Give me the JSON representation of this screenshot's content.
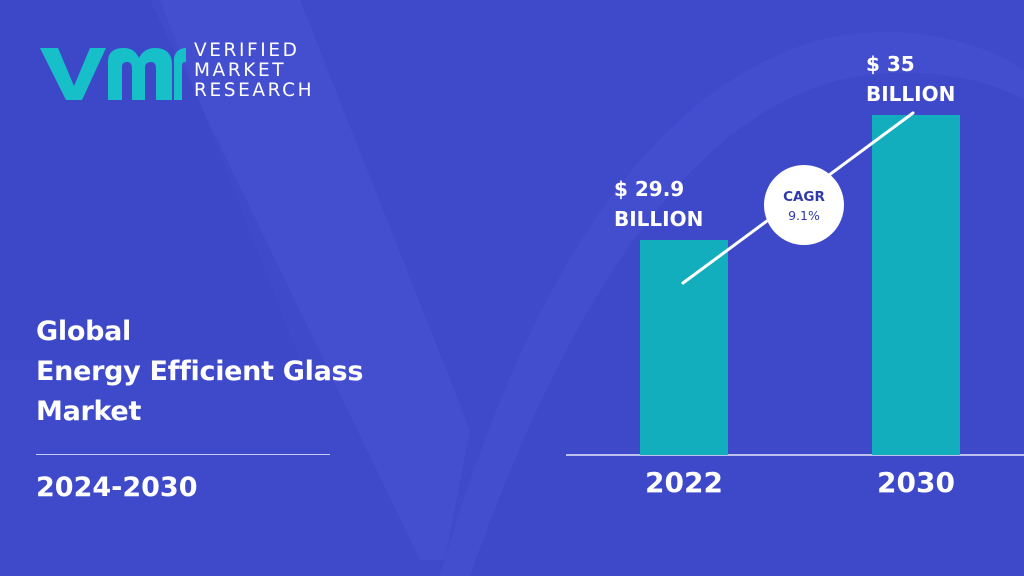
{
  "brand": {
    "logo_lines": [
      "VERIFIED",
      "MARKET",
      "RESEARCH"
    ]
  },
  "title": {
    "lines": [
      "Global",
      "Energy Efficient Glass",
      "Market"
    ],
    "period": "2024-2030"
  },
  "colors": {
    "background": "#3f4acb",
    "bar": "#12aebe",
    "logo_accent": "#17c0c9",
    "cagr_text": "#2f3aa8"
  },
  "chart_data": {
    "type": "bar",
    "categories": [
      "2022",
      "2030"
    ],
    "values": [
      29.9,
      35
    ],
    "value_labels": [
      [
        "$ 29.9",
        "BILLION"
      ],
      [
        "$ 35",
        "BILLION"
      ]
    ],
    "unit": "BILLION",
    "annotation": {
      "label": "CAGR",
      "value": "9.1%"
    },
    "grid": false,
    "legend": "none"
  }
}
